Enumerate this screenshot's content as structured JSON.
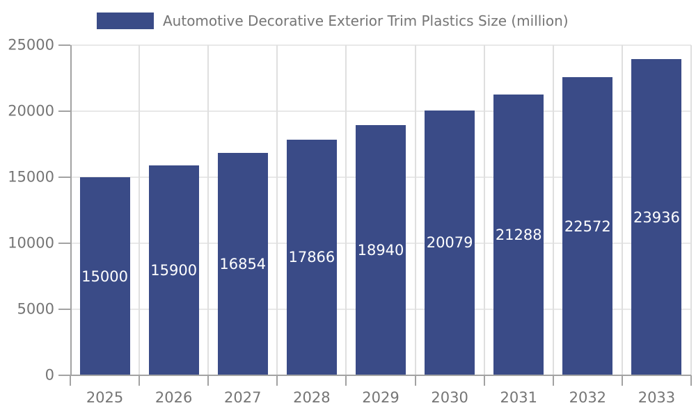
{
  "chart_data": {
    "type": "bar",
    "title": "Automotive Decorative Exterior Trim Plastics Size (million)",
    "legend": {
      "position": "top",
      "entries": [
        "Automotive Decorative Exterior Trim Plastics Size (million)"
      ]
    },
    "categories": [
      "2025",
      "2026",
      "2027",
      "2028",
      "2029",
      "2030",
      "2031",
      "2032",
      "2033"
    ],
    "series": [
      {
        "name": "Automotive Decorative Exterior Trim Plastics Size (million)",
        "values": [
          15000,
          15900,
          16854,
          17866,
          18940,
          20079,
          21288,
          22572,
          23936
        ]
      }
    ],
    "xlabel": "",
    "ylabel": "",
    "ylim": [
      0,
      25000
    ],
    "yticks": [
      0,
      5000,
      10000,
      15000,
      20000,
      25000
    ],
    "grid": true,
    "value_labels": "inside-center",
    "colors": {
      "bar": "#3A4B87",
      "axis": "#A2A2A2",
      "grid_horizontal": "#E8E8E8",
      "grid_vertical": "#DFDFDF",
      "axis_text": "#757575",
      "value_label_text": "#FFFFFF",
      "background": "#FFFFFF"
    }
  }
}
